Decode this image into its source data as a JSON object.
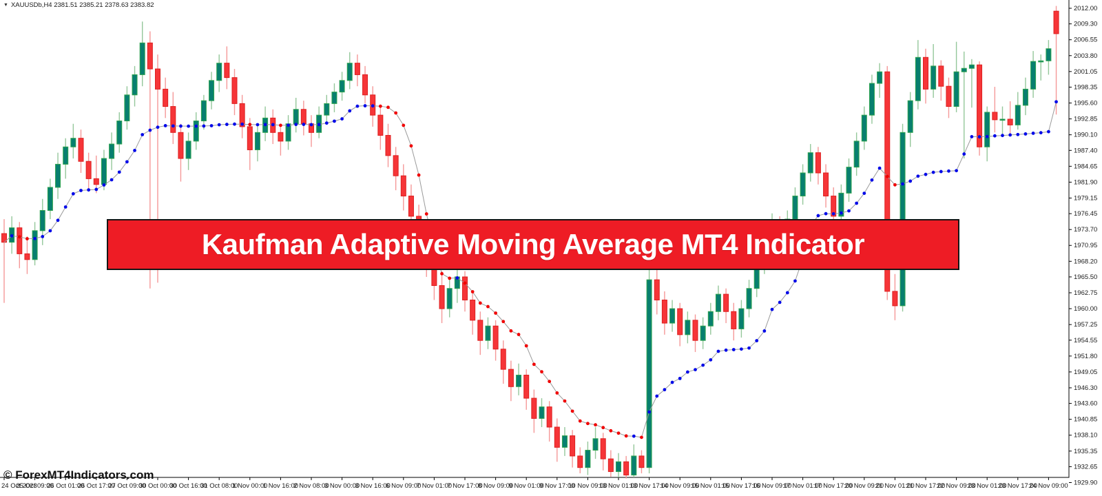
{
  "window": {
    "dropdown_icon": "▼",
    "symbol_line": "XAUUSDb,H4  2381.51 2385.21 2378.63 2383.82"
  },
  "banner": {
    "text": "Kaufman Adaptive Moving Average MT4 Indicator",
    "bg_color": "#ee1c25",
    "border_color": "#151515",
    "text_color": "#ffffff"
  },
  "watermark": {
    "text": "© ForexMT4Indicators.com"
  },
  "chart_data": {
    "type": "candlestick",
    "symbol": "XAUUSDb",
    "timeframe": "H4",
    "ohlc_readout": {
      "open": "2381.51",
      "high": "2385.21",
      "low": "2378.63",
      "close": "2383.82"
    },
    "y_axis_labels": [
      "2012.00",
      "2009.30",
      "2006.55",
      "2003.80",
      "2001.05",
      "1998.35",
      "1995.60",
      "1992.85",
      "1990.10",
      "1987.40",
      "1984.65",
      "1981.90",
      "1979.15",
      "1976.45",
      "1973.70",
      "1970.95",
      "1968.20",
      "1965.50",
      "1962.75",
      "1960.00",
      "1957.25",
      "1954.55",
      "1951.80",
      "1949.05",
      "1946.30",
      "1943.60",
      "1940.85",
      "1938.10",
      "1935.35",
      "1932.65",
      "1929.90"
    ],
    "x_axis_labels": [
      "24 Oct 2023",
      "25 Oct 09:00",
      "26 Oct 01:00",
      "26 Oct 17:00",
      "27 Oct 09:00",
      "30 Oct 00:00",
      "30 Oct 16:00",
      "31 Oct 08:00",
      "1 Nov 00:00",
      "1 Nov 16:00",
      "2 Nov 08:00",
      "3 Nov 00:00",
      "3 Nov 16:00",
      "6 Nov 09:00",
      "7 Nov 01:00",
      "7 Nov 17:00",
      "8 Nov 09:00",
      "9 Nov 01:00",
      "9 Nov 17:00",
      "10 Nov 09:00",
      "13 Nov 01:00",
      "13 Nov 17:00",
      "14 Nov 09:00",
      "15 Nov 01:00",
      "15 Nov 17:00",
      "16 Nov 09:00",
      "17 Nov 01:00",
      "17 Nov 17:00",
      "20 Nov 09:00",
      "21 Nov 01:00",
      "21 Nov 17:00",
      "22 Nov 09:00",
      "23 Nov 01:00",
      "23 Nov 17:00",
      "24 Nov 09:00"
    ],
    "bars_per_tick": 4,
    "ylim": [
      1928.0,
      2013.4
    ],
    "indicator": {
      "name": "Kaufman Adaptive Moving Average",
      "period": 10,
      "fast": 2,
      "slow": 30,
      "dot_up_color": "#0008e8",
      "dot_down_color": "#f00000",
      "line_color": "#9a9a9a"
    },
    "colors": {
      "bull_body": "#087f6f",
      "bull_border": "#2fa34f",
      "bull_wick": "#94c79a",
      "bear_body": "#f63538",
      "bear_border": "#dd2020",
      "bear_wick": "#f59898",
      "axis": "#000000",
      "text": "#1a1a1a"
    },
    "candles": [
      [
        1973.0,
        1975.5,
        1961.0,
        1971.5
      ],
      [
        1971.5,
        1976.0,
        1969.5,
        1974.0
      ],
      [
        1974.0,
        1975.0,
        1967.0,
        1969.5
      ],
      [
        1969.5,
        1972.5,
        1966.0,
        1968.5
      ],
      [
        1968.5,
        1975.0,
        1967.5,
        1973.5
      ],
      [
        1973.5,
        1979.0,
        1971.0,
        1977.0
      ],
      [
        1977.0,
        1982.5,
        1975.5,
        1981.0
      ],
      [
        1981.0,
        1987.0,
        1979.0,
        1985.0
      ],
      [
        1985.0,
        1989.5,
        1982.5,
        1988.0
      ],
      [
        1988.0,
        1992.0,
        1986.0,
        1989.5
      ],
      [
        1989.5,
        1991.0,
        1983.5,
        1985.5
      ],
      [
        1985.5,
        1987.0,
        1980.5,
        1982.5
      ],
      [
        1982.5,
        1986.5,
        1980.0,
        1981.5
      ],
      [
        1981.5,
        1987.5,
        1980.5,
        1986.0
      ],
      [
        1986.0,
        1990.5,
        1984.0,
        1988.5
      ],
      [
        1988.5,
        1994.0,
        1987.0,
        1992.5
      ],
      [
        1992.5,
        1998.5,
        1991.0,
        1997.0
      ],
      [
        1997.0,
        2002.0,
        1995.0,
        2000.5
      ],
      [
        2000.5,
        2009.7,
        1998.5,
        2006.0
      ],
      [
        2006.0,
        2008.0,
        1963.5,
        2001.5
      ],
      [
        2001.5,
        2004.0,
        1964.5,
        1998.0
      ],
      [
        1998.0,
        2000.0,
        1993.0,
        1995.0
      ],
      [
        1995.0,
        1997.5,
        1988.5,
        1990.5
      ],
      [
        1990.5,
        1992.0,
        1982.0,
        1986.0
      ],
      [
        1986.0,
        1990.5,
        1984.0,
        1989.0
      ],
      [
        1989.0,
        1994.0,
        1987.5,
        1992.5
      ],
      [
        1992.5,
        1997.0,
        1991.0,
        1996.0
      ],
      [
        1996.0,
        2001.0,
        1994.5,
        1999.5
      ],
      [
        1999.5,
        2004.0,
        1997.5,
        2002.5
      ],
      [
        2002.5,
        2005.4,
        1998.0,
        2000.0
      ],
      [
        2000.0,
        2001.5,
        1993.5,
        1995.5
      ],
      [
        1995.5,
        1997.0,
        1989.5,
        1991.5
      ],
      [
        1991.5,
        1993.0,
        1984.0,
        1987.5
      ],
      [
        1987.5,
        1992.0,
        1985.5,
        1990.5
      ],
      [
        1990.5,
        1995.0,
        1989.0,
        1993.0
      ],
      [
        1993.0,
        1994.5,
        1988.5,
        1990.5
      ],
      [
        1990.5,
        1992.0,
        1986.5,
        1989.0
      ],
      [
        1989.0,
        1993.5,
        1987.5,
        1992.0
      ],
      [
        1992.0,
        1996.5,
        1990.5,
        1994.5
      ],
      [
        1994.5,
        1996.0,
        1990.0,
        1992.0
      ],
      [
        1992.0,
        1993.5,
        1988.0,
        1990.5
      ],
      [
        1990.5,
        1995.0,
        1989.5,
        1993.5
      ],
      [
        1993.5,
        1997.0,
        1992.0,
        1995.5
      ],
      [
        1995.5,
        1999.0,
        1994.0,
        1997.5
      ],
      [
        1997.5,
        2001.0,
        1996.0,
        1999.5
      ],
      [
        1999.5,
        2004.4,
        1998.0,
        2002.5
      ],
      [
        2002.5,
        2004.0,
        1998.5,
        2000.5
      ],
      [
        2000.5,
        2002.0,
        1995.5,
        1997.0
      ],
      [
        1997.0,
        1998.5,
        1991.5,
        1993.5
      ],
      [
        1993.5,
        1995.0,
        1987.5,
        1990.0
      ],
      [
        1990.0,
        1992.0,
        1984.5,
        1986.5
      ],
      [
        1986.5,
        1988.0,
        1980.5,
        1983.0
      ],
      [
        1983.0,
        1985.0,
        1977.0,
        1979.5
      ],
      [
        1979.5,
        1981.5,
        1973.5,
        1976.0
      ],
      [
        1976.0,
        1978.0,
        1969.5,
        1972.0
      ],
      [
        1972.0,
        1974.5,
        1965.5,
        1968.0
      ],
      [
        1968.0,
        1970.0,
        1961.5,
        1964.0
      ],
      [
        1964.0,
        1966.5,
        1957.5,
        1960.0
      ],
      [
        1960.0,
        1965.0,
        1958.5,
        1963.5
      ],
      [
        1963.5,
        1967.0,
        1961.0,
        1965.5
      ],
      [
        1965.5,
        1966.5,
        1959.5,
        1961.5
      ],
      [
        1961.5,
        1963.0,
        1955.5,
        1958.0
      ],
      [
        1958.0,
        1959.5,
        1952.0,
        1954.5
      ],
      [
        1954.5,
        1958.5,
        1953.0,
        1957.0
      ],
      [
        1957.0,
        1958.0,
        1951.0,
        1953.0
      ],
      [
        1953.0,
        1954.5,
        1947.0,
        1949.5
      ],
      [
        1949.5,
        1951.0,
        1944.0,
        1946.5
      ],
      [
        1946.5,
        1950.5,
        1945.0,
        1948.5
      ],
      [
        1948.5,
        1949.5,
        1942.5,
        1944.5
      ],
      [
        1944.5,
        1946.0,
        1938.5,
        1941.0
      ],
      [
        1941.0,
        1944.5,
        1939.5,
        1943.0
      ],
      [
        1943.0,
        1944.0,
        1937.0,
        1939.5
      ],
      [
        1939.5,
        1941.0,
        1933.5,
        1936.0
      ],
      [
        1936.0,
        1939.5,
        1934.5,
        1938.0
      ],
      [
        1938.0,
        1939.0,
        1932.5,
        1934.5
      ],
      [
        1934.5,
        1936.0,
        1931.5,
        1932.5
      ],
      [
        1932.5,
        1937.0,
        1931.2,
        1935.5
      ],
      [
        1935.5,
        1939.5,
        1934.0,
        1937.5
      ],
      [
        1937.5,
        1938.5,
        1932.0,
        1934.0
      ],
      [
        1934.0,
        1935.5,
        1930.9,
        1931.8
      ],
      [
        1931.8,
        1935.0,
        1930.8,
        1933.5
      ],
      [
        1933.5,
        1934.5,
        1930.6,
        1931.2
      ],
      [
        1931.2,
        1936.5,
        1930.8,
        1934.5
      ],
      [
        1934.5,
        1935.5,
        1931.5,
        1932.5
      ],
      [
        1932.5,
        1967.0,
        1931.5,
        1965.0
      ],
      [
        1965.0,
        1968.5,
        1959.0,
        1961.5
      ],
      [
        1961.5,
        1963.0,
        1955.5,
        1957.5
      ],
      [
        1957.5,
        1961.5,
        1956.0,
        1960.0
      ],
      [
        1960.0,
        1961.0,
        1953.5,
        1955.5
      ],
      [
        1955.5,
        1959.5,
        1954.0,
        1958.0
      ],
      [
        1958.0,
        1959.0,
        1952.5,
        1954.5
      ],
      [
        1954.5,
        1958.5,
        1953.0,
        1957.0
      ],
      [
        1957.0,
        1961.0,
        1955.5,
        1959.5
      ],
      [
        1959.5,
        1964.0,
        1958.0,
        1962.5
      ],
      [
        1962.5,
        1963.5,
        1957.5,
        1959.5
      ],
      [
        1959.5,
        1961.0,
        1954.5,
        1956.5
      ],
      [
        1956.5,
        1961.5,
        1955.0,
        1960.0
      ],
      [
        1960.0,
        1965.0,
        1958.5,
        1963.5
      ],
      [
        1963.5,
        1969.0,
        1962.0,
        1967.5
      ],
      [
        1967.5,
        1973.0,
        1966.0,
        1971.5
      ],
      [
        1971.5,
        1976.5,
        1970.0,
        1975.0
      ],
      [
        1975.0,
        1976.0,
        1969.5,
        1971.5
      ],
      [
        1971.5,
        1977.0,
        1970.0,
        1975.5
      ],
      [
        1975.5,
        1981.0,
        1974.0,
        1979.5
      ],
      [
        1979.5,
        1985.0,
        1978.0,
        1983.5
      ],
      [
        1983.5,
        1988.5,
        1982.0,
        1987.0
      ],
      [
        1987.0,
        1988.0,
        1981.5,
        1983.5
      ],
      [
        1983.5,
        1985.0,
        1977.5,
        1979.5
      ],
      [
        1979.5,
        1981.0,
        1973.5,
        1976.0
      ],
      [
        1976.0,
        1981.5,
        1974.5,
        1980.0
      ],
      [
        1980.0,
        1986.0,
        1978.5,
        1984.5
      ],
      [
        1984.5,
        1990.5,
        1983.0,
        1989.0
      ],
      [
        1989.0,
        1995.0,
        1987.5,
        1993.5
      ],
      [
        1993.5,
        2000.5,
        1992.0,
        1999.0
      ],
      [
        1999.0,
        2002.5,
        1996.5,
        2001.0
      ],
      [
        2001.0,
        2002.0,
        1961.5,
        1963.0
      ],
      [
        1963.0,
        1966.0,
        1958.0,
        1960.5
      ],
      [
        1960.5,
        1992.0,
        1959.5,
        1990.5
      ],
      [
        1990.5,
        1997.5,
        1988.0,
        1996.0
      ],
      [
        1996.0,
        2006.5,
        1994.5,
        2003.5
      ],
      [
        2003.5,
        2005.0,
        1995.5,
        1998.0
      ],
      [
        1998.0,
        2005.8,
        1996.5,
        2002.0
      ],
      [
        2002.0,
        2003.0,
        1996.0,
        1998.5
      ],
      [
        1998.5,
        2000.0,
        1993.0,
        1995.0
      ],
      [
        1995.0,
        2006.2,
        1994.0,
        2001.0
      ],
      [
        2001.0,
        2004.5,
        1986.0,
        2001.6
      ],
      [
        2001.6,
        2003.2,
        1994.8,
        2002.2
      ],
      [
        2002.2,
        2002.8,
        1986.5,
        1988.0
      ],
      [
        1988.0,
        1995.0,
        1985.5,
        1994.0
      ],
      [
        1994.0,
        1998.4,
        1990.5,
        1992.7
      ],
      [
        1992.7,
        1995.0,
        1990.0,
        1992.8
      ],
      [
        1992.8,
        1995.9,
        1989.9,
        1991.8
      ],
      [
        1991.8,
        1997.5,
        1991.0,
        1995.2
      ],
      [
        1995.2,
        2000.0,
        1993.5,
        1998.0
      ],
      [
        1998.0,
        2004.6,
        1996.5,
        2002.8
      ],
      [
        2002.8,
        2004.0,
        1999.5,
        2002.9
      ],
      [
        2002.9,
        2006.5,
        2000.5,
        2005.0
      ],
      [
        2011.5,
        2012.4,
        1993.6,
        2007.6
      ]
    ]
  }
}
